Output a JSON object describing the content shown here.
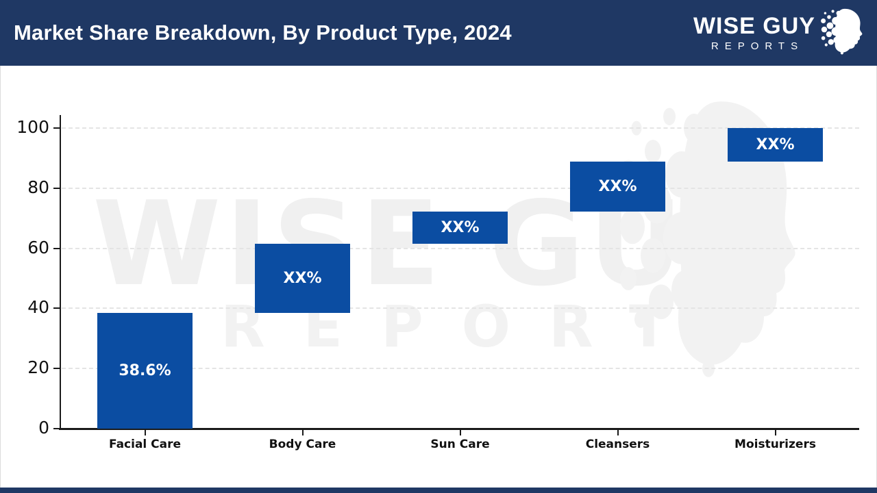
{
  "header": {
    "title": "Market Share Breakdown, By Product Type, 2024",
    "logo": {
      "primary": "WISE GUY",
      "secondary": "REPORTS"
    }
  },
  "watermark": {
    "primary": "WISE GUY",
    "secondary": "REPORTS"
  },
  "chart_data": {
    "type": "bar",
    "subtype": "waterfall",
    "title": "Market Share Breakdown, By Product Type, 2024",
    "categories": [
      "Facial Care",
      "Body Care",
      "Sun Care",
      "Cleansers",
      "Moisturizers"
    ],
    "segments": [
      {
        "category": "Facial Care",
        "start": 0,
        "end": 38.6,
        "label": "38.6%"
      },
      {
        "category": "Body Care",
        "start": 38.6,
        "end": 61.5,
        "label": "XX%"
      },
      {
        "category": "Sun Care",
        "start": 61.5,
        "end": 72.3,
        "label": "XX%"
      },
      {
        "category": "Cleansers",
        "start": 72.3,
        "end": 88.9,
        "label": "XX%"
      },
      {
        "category": "Moisturizers",
        "start": 88.9,
        "end": 100,
        "label": "XX%"
      }
    ],
    "xlabel": "",
    "ylabel": "",
    "yticks": [
      0,
      20,
      40,
      60,
      80,
      100
    ],
    "ylim": [
      0,
      105
    ],
    "grid": "horizontal-dashed",
    "legend": "none",
    "bar_color": "#0b4da2",
    "bar_label_color": "#ffffff"
  },
  "colors": {
    "header_bg": "#1f3864",
    "footer_bg": "#1f3864",
    "bar": "#0b4da2",
    "grid": "#e4e4e4",
    "axis": "#1a1a1a",
    "watermark": "#f0f0f0",
    "title_text": "#ffffff"
  }
}
